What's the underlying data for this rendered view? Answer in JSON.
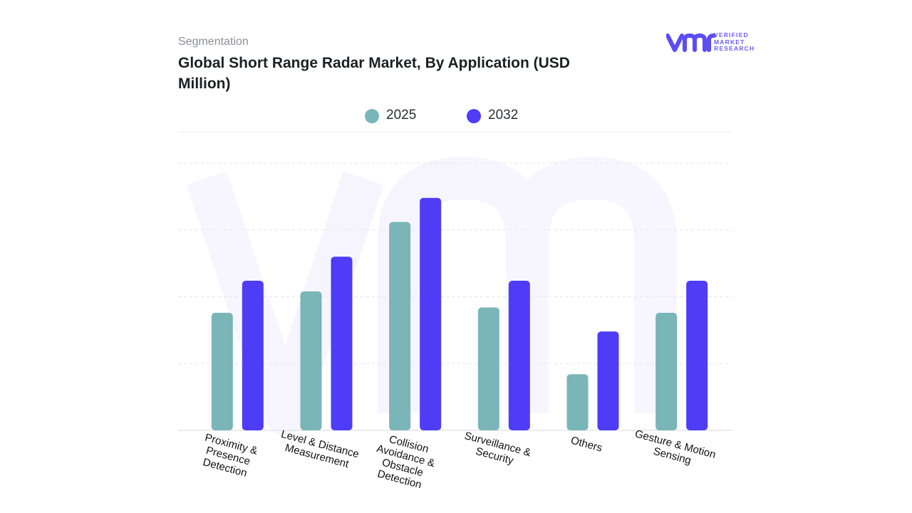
{
  "header": {
    "section_label": "Segmentation",
    "title": "Global Short Range Radar Market, By Application (USD Million)"
  },
  "brand": {
    "logo_mark": "vmr",
    "logo_lines": [
      "VERIFIED",
      "MARKET",
      "RESEARCH"
    ],
    "logo_color": "#5b4cf5"
  },
  "colors": {
    "series_2025": "#7ab5b8",
    "series_2032": "#4f3cf7",
    "grid": "#e3e5ea",
    "axis_label": "#111111"
  },
  "chart_data": {
    "type": "bar",
    "categories": [
      "Proximity & Presence Detection",
      "Level & Distance Measurement",
      "Collision Avoidance & Obstacle Detection",
      "Surveillance & Security",
      "Others",
      "Gesture & Motion Sensing"
    ],
    "category_label_lines": [
      [
        "Proximity &",
        "Presence",
        "Detection"
      ],
      [
        "Level & Distance",
        "Measurement"
      ],
      [
        "Collision",
        "Avoidance &",
        "Obstacle",
        "Detection"
      ],
      [
        "Surveillance &",
        "Security"
      ],
      [
        "Others"
      ],
      [
        "Gesture & Motion",
        "Sensing"
      ]
    ],
    "series": [
      {
        "name": "2025",
        "values": [
          44,
          52,
          78,
          46,
          21,
          44
        ]
      },
      {
        "name": "2032",
        "values": [
          56,
          65,
          87,
          56,
          37,
          56
        ]
      }
    ],
    "ylim": [
      0,
      100
    ],
    "gridlines": [
      0,
      25,
      50,
      75,
      100
    ],
    "legend_position": "top-center",
    "grid": true,
    "xlabel": "",
    "ylabel": ""
  }
}
